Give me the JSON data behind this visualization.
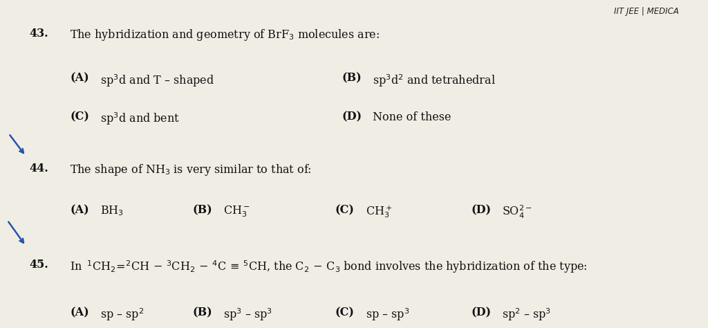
{
  "bg_color": "#f0ede5",
  "page_color": "#f5f2ea",
  "text_color": "#111111",
  "header": "IIT JEE | MEDICA",
  "figsize": [
    10.24,
    4.74
  ],
  "dpi": 100,
  "q43_num": "43.",
  "q43_question": "The hybridization and geometry of BrF$_3$ molecules are:",
  "q43_A_label": "(A)",
  "q43_A_text": "sp$^3$d and T – shaped",
  "q43_B_label": "(B)",
  "q43_B_text": "sp$^3$d$^2$ and tetrahedral",
  "q43_C_label": "(C)",
  "q43_C_text": "sp$^3$d and bent",
  "q43_D_label": "(D)",
  "q43_D_text": "None of these",
  "q44_num": "44.",
  "q44_question": "The shape of NH$_3$ is very similar to that of:",
  "q44_A_label": "(A)",
  "q44_A_text": "BH$_3$",
  "q44_B_label": "(B)",
  "q44_B_text": "CH$_3^-$",
  "q44_C_label": "(C)",
  "q44_C_text": "CH$_3^+$",
  "q44_D_label": "(D)",
  "q44_D_text": "SO$_4^{2-}$",
  "q45_num": "45.",
  "q45_intro": "In ",
  "q45_formula": "$^1$CH$_2$ $=$ $^2$CH $-$ $^3$CH$_2$ $-$ $^4$C $\\equiv$ $^5$CH, the C$_2$ − C$_3$ bond involves the hybridization of the type:",
  "q45_A_label": "(A)",
  "q45_A_text": "sp – sp$^2$",
  "q45_B_label": "(B)",
  "q45_B_text": "sp$^3$ – sp$^3$",
  "q45_C_label": "(C)",
  "q45_C_text": "sp – sp$^3$",
  "q45_D_label": "(D)",
  "q45_D_text": "sp$^2$ – sp$^3$",
  "arrow_color": "#2255aa",
  "num_color": "#111111",
  "bold_color": "#111111"
}
